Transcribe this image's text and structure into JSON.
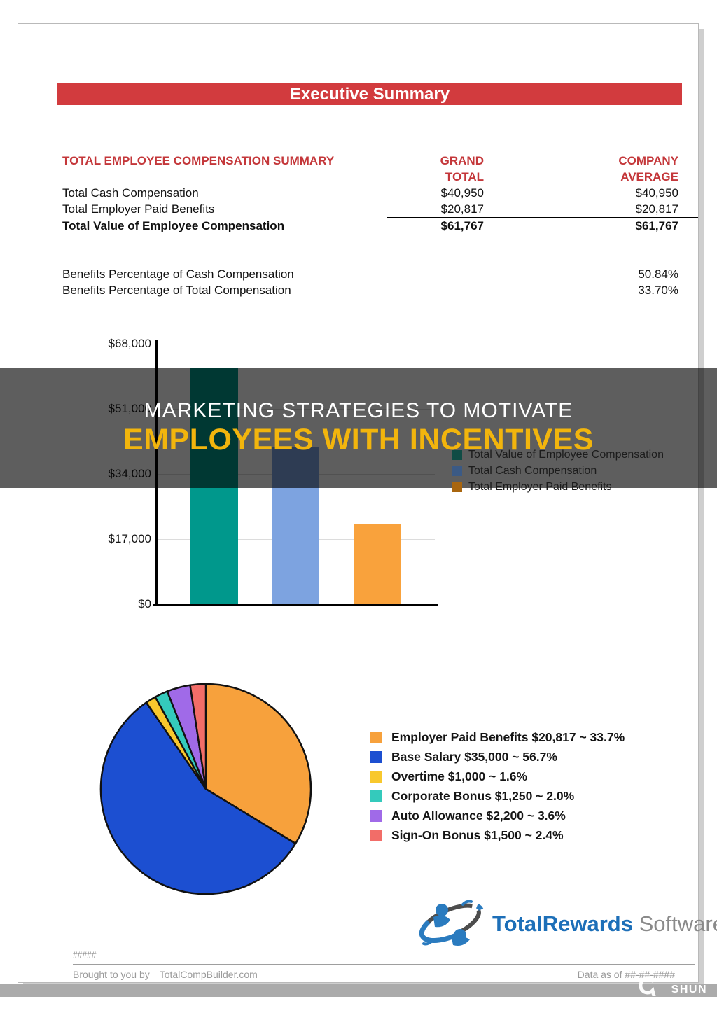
{
  "banner": {
    "title": "Executive Summary"
  },
  "summary_table": {
    "header": "TOTAL EMPLOYEE COMPENSATION SUMMARY",
    "col2_header": [
      "GRAND",
      "TOTAL"
    ],
    "col3_header": [
      "COMPANY",
      "AVERAGE"
    ],
    "rows": [
      {
        "label": "Total Cash Compensation",
        "grand_total": "$40,950",
        "company_average": "$40,950",
        "bold": false
      },
      {
        "label": "Total Employer Paid Benefits",
        "grand_total": "$20,817",
        "company_average": "$20,817",
        "bold": false
      },
      {
        "label": "Total Value of Employee Compensation",
        "grand_total": "$61,767",
        "company_average": "$61,767",
        "bold": true
      }
    ],
    "percent_rows": [
      {
        "label": "Benefits Percentage of Cash Compensation",
        "value": "50.84%"
      },
      {
        "label": "Benefits Percentage of Total Compensation",
        "value": "33.70%"
      }
    ]
  },
  "overlay": {
    "title_line1": "MARKETING STRATEGIES TO MOTIVATE",
    "title_line2": "EMPLOYEES WITH INCENTIVES",
    "line1_color": "#ffffff",
    "line2_color": "#f2b50d",
    "band_color": "rgba(0,0,0,0.63)"
  },
  "chart_data": [
    {
      "type": "bar",
      "title": "",
      "categories": [
        "Total Value of Employee Compensation",
        "Total Cash Compensation",
        "Total Employer Paid Benefits"
      ],
      "values": [
        61767,
        40950,
        20817
      ],
      "colors": [
        "#00988c",
        "#7da3e0",
        "#f9a23c"
      ],
      "legend_swatch_display_colors": [
        "#0f4c45",
        "#3b5a85",
        "#a9660f"
      ],
      "ylabel": "",
      "xlabel": "",
      "ylim": [
        0,
        68000
      ],
      "yticks": [
        {
          "value": 68000,
          "label": "$68,000"
        },
        {
          "value": 51000,
          "label": "$51,000"
        },
        {
          "value": 34000,
          "label": "$34,000"
        },
        {
          "value": 17000,
          "label": "$17,000"
        },
        {
          "value": 0,
          "label": "$0"
        }
      ],
      "grid": true,
      "legend_position": "right"
    },
    {
      "type": "pie",
      "start_angle_deg": -90,
      "direction": "clockwise",
      "slices": [
        {
          "label": "Employer Paid Benefits",
          "amount": "$20,817",
          "percent": 33.7,
          "legend": "Employer Paid Benefits $20,817 ~ 33.7%",
          "color": "#f7a13c"
        },
        {
          "label": "Base Salary",
          "amount": "$35,000",
          "percent": 56.7,
          "legend": "Base Salary $35,000 ~ 56.7%",
          "color": "#1c4fd1"
        },
        {
          "label": "Overtime",
          "amount": "$1,000",
          "percent": 1.6,
          "legend": "Overtime $1,000 ~ 1.6%",
          "color": "#f8c82d"
        },
        {
          "label": "Corporate Bonus",
          "amount": "$1,250",
          "percent": 2.0,
          "legend": "Corporate Bonus $1,250 ~ 2.0%",
          "color": "#34cabc"
        },
        {
          "label": "Auto Allowance",
          "amount": "$2,200",
          "percent": 3.6,
          "legend": "Auto Allowance $2,200 ~ 3.6%",
          "color": "#a06ae8"
        },
        {
          "label": "Sign-On Bonus",
          "amount": "$1,500",
          "percent": 2.4,
          "legend": "Sign-On Bonus $1,500 ~ 2.4%",
          "color": "#f26d68"
        }
      ]
    }
  ],
  "logo": {
    "brand_blue": "TotalRewards",
    "brand_gray": "Software"
  },
  "footer": {
    "hash": "#####",
    "brought_prefix": "Brought to you by",
    "site": "TotalCompBuilder.com",
    "data_as_of": "Data as of ##-##-####"
  },
  "watermark": "SHUN"
}
